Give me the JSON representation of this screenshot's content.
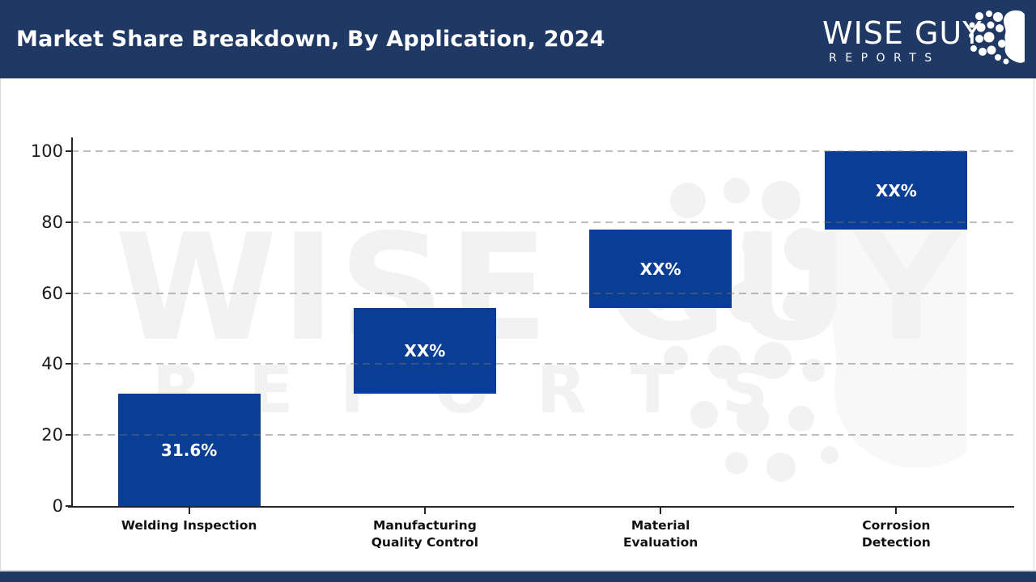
{
  "header": {
    "title": "Market Share Breakdown, By Application, 2024",
    "logo": {
      "line1": "WISE GUY",
      "line2": "REPORTS"
    }
  },
  "watermark": {
    "line1": "WISE GUY",
    "line2": "REPORTS"
  },
  "colors": {
    "header_bg": "#1f3864",
    "footer_bg": "#1f3864",
    "bar": "#0a3e94",
    "axis": "#262626",
    "tick_text": "#1a1a1a",
    "grid": "#c8c8c8",
    "bar_label_text": "#ffffff",
    "watermark": "#f2f2f2"
  },
  "chart_data": {
    "type": "bar",
    "subtype": "floating-waterfall",
    "title": "Market Share Breakdown, By Application, 2024",
    "xlabel": "",
    "ylabel": "",
    "ylim": [
      0,
      103
    ],
    "y_ticks": [
      0,
      20,
      40,
      60,
      80,
      100
    ],
    "grid": "horizontal-dashed",
    "legend": "none",
    "categories": [
      "Welding Inspection",
      "Manufacturing\nQuality Control",
      "Material\nEvaluation",
      "Corrosion\nDetection"
    ],
    "segments": [
      {
        "category": "Welding Inspection",
        "start": 0,
        "end": 31.6,
        "label": "31.6%"
      },
      {
        "category": "Manufacturing Quality Control",
        "start": 31.6,
        "end": 55.8,
        "label": "XX%"
      },
      {
        "category": "Material Evaluation",
        "start": 55.8,
        "end": 77.9,
        "label": "XX%"
      },
      {
        "category": "Corrosion Detection",
        "start": 77.9,
        "end": 100,
        "label": "XX%"
      }
    ]
  }
}
